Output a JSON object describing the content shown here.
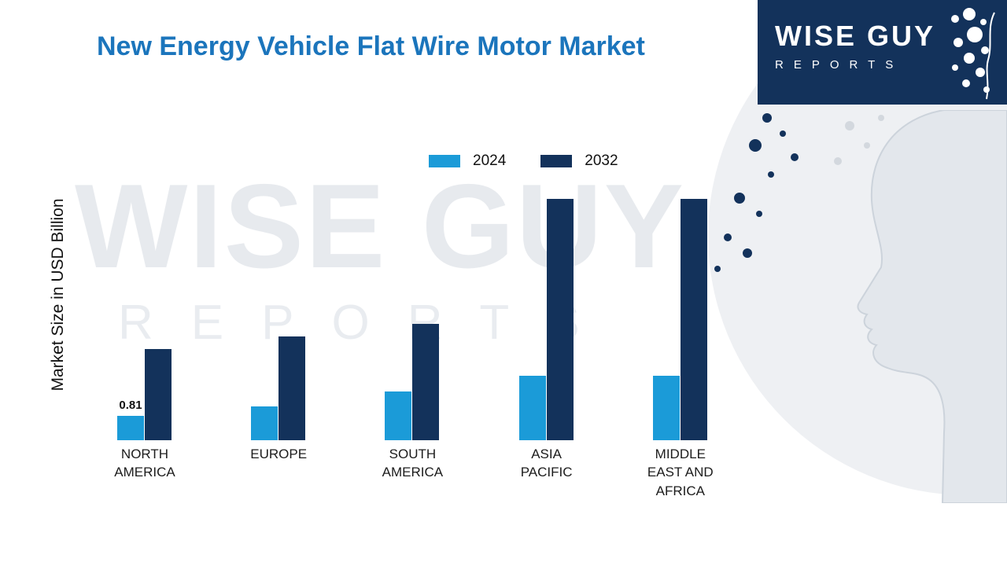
{
  "title": "New Energy Vehicle Flat Wire Motor Market",
  "ylabel": "Market Size in USD Billion",
  "logo": {
    "line1": "WISE GUY",
    "line2": "REPORTS"
  },
  "watermark": {
    "line1": "WISE GUY",
    "line2": "REPORTS"
  },
  "colors": {
    "title_blue": "#1b75bc",
    "bar_2024": "#1b9bd8",
    "bar_2032": "#13325b",
    "band_navy": "#13325b",
    "circle_gray": "#eef0f3"
  },
  "legend": [
    {
      "label": "2024",
      "color": "#1b9bd8"
    },
    {
      "label": "2032",
      "color": "#13325b"
    }
  ],
  "chart_data": {
    "type": "bar",
    "title": "New Energy Vehicle Flat Wire Motor Market",
    "ylabel": "Market Size in USD Billion",
    "xlabel": "",
    "categories": [
      "NORTH AMERICA",
      "EUROPE",
      "SOUTH AMERICA",
      "ASIA PACIFIC",
      "MIDDLE EAST AND AFRICA"
    ],
    "series": [
      {
        "name": "2024",
        "color": "#1b9bd8",
        "values": [
          0.81,
          1.1,
          1.6,
          2.1,
          2.1
        ]
      },
      {
        "name": "2032",
        "color": "#13325b",
        "values": [
          3.0,
          3.4,
          3.8,
          7.9,
          7.9
        ]
      }
    ],
    "annotations": [
      {
        "category": "NORTH AMERICA",
        "series": "2024",
        "text": "0.81"
      }
    ],
    "ylim": [
      0,
      8.5
    ],
    "grid": false,
    "legend_position": "top"
  }
}
